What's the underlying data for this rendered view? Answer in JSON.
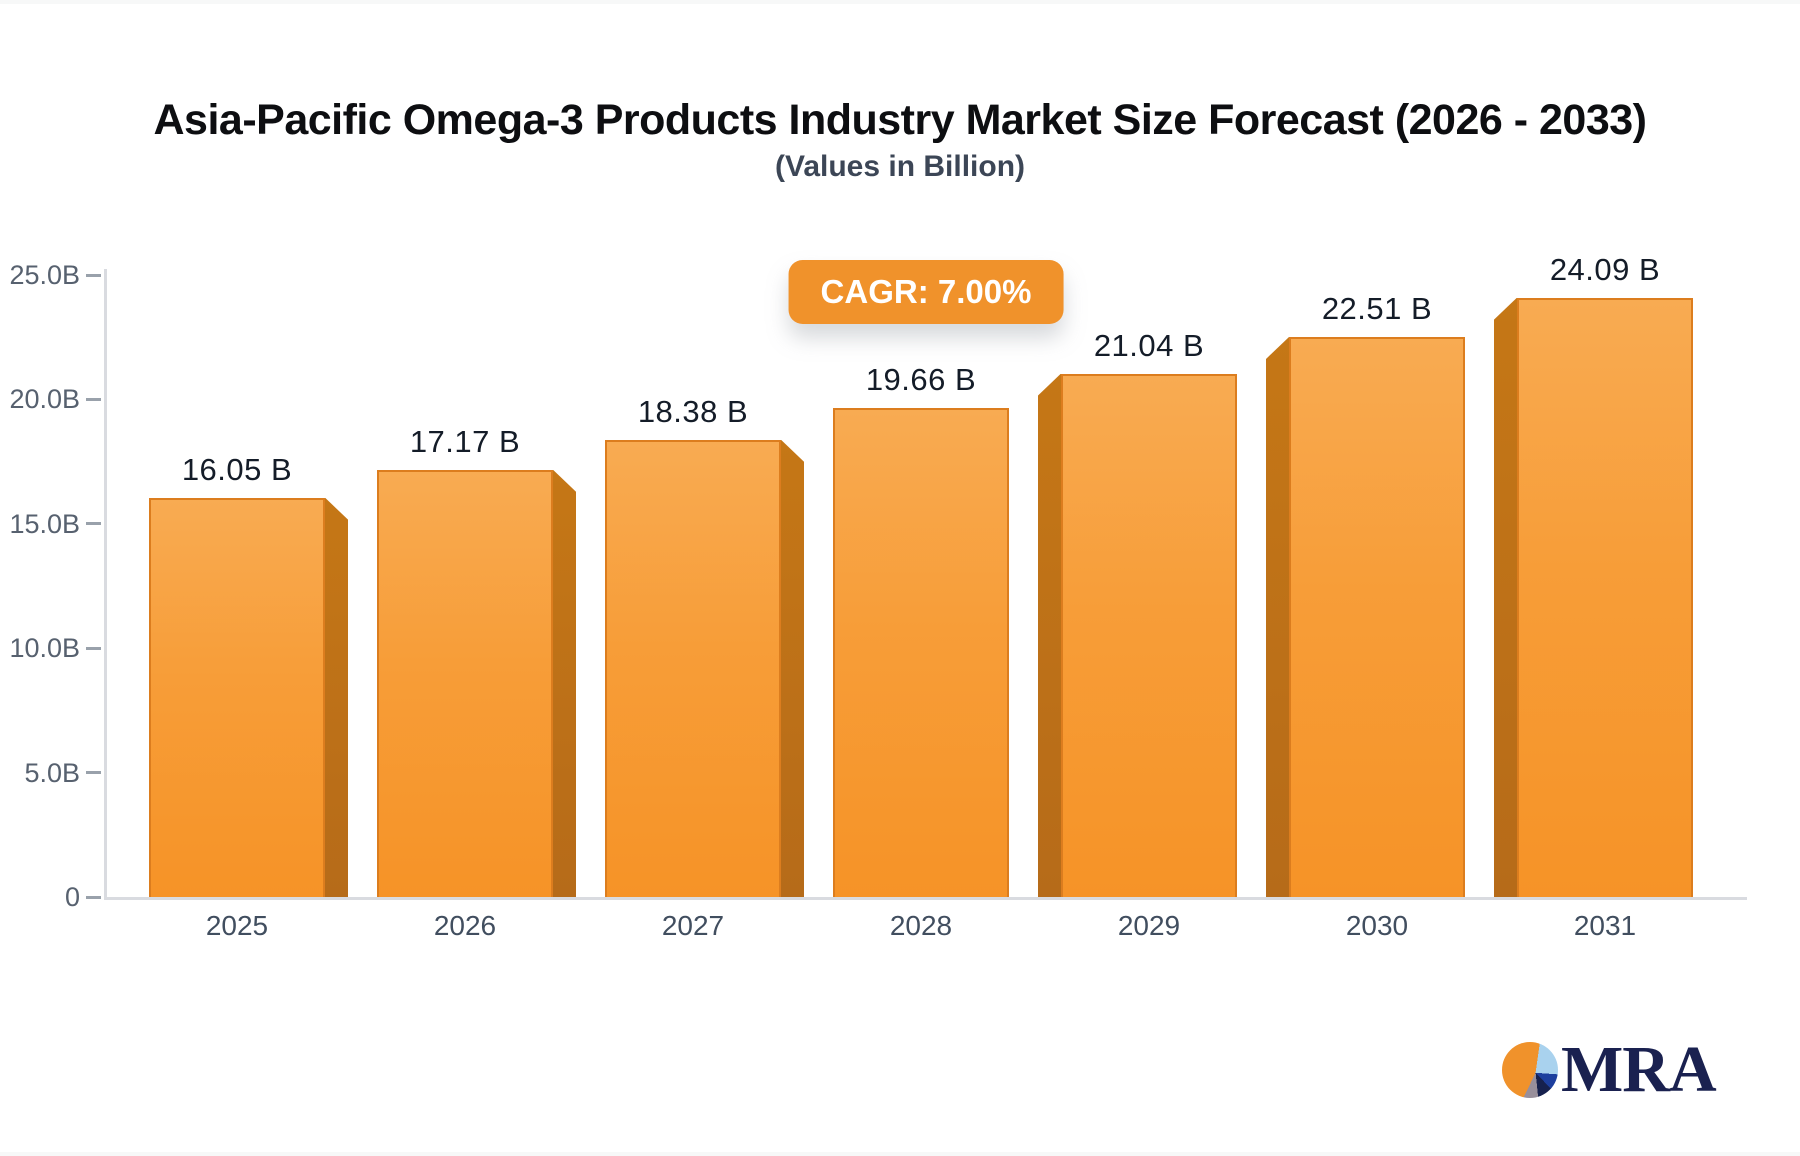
{
  "header": {
    "title": "Asia-Pacific Omega-3 Products Industry Market Size Forecast (2026 - 2033)",
    "subtitle": "(Values in Billion)"
  },
  "badge": {
    "label": "CAGR: 7.00%"
  },
  "logo": {
    "text": "MRA",
    "pie_icon": "pie-chart-icon"
  },
  "colors": {
    "bar_orange_top": "#f8ab52",
    "bar_orange_bottom": "#f69327",
    "bar_stroke": "#dc7d1e",
    "bar_side_dark": "#bc6e18",
    "badge_orange": "#f0922b",
    "axis_gray": "#d9dbe0",
    "label_dark": "#141c28",
    "logo_navy": "#1a2150"
  },
  "chart_data": {
    "type": "bar",
    "title": "Asia-Pacific Omega-3 Products Industry Market Size Forecast (2026 - 2033)",
    "subtitle": "(Values in Billion)",
    "annotation": "CAGR: 7.00%",
    "categories": [
      "2025",
      "2026",
      "2027",
      "2028",
      "2029",
      "2030",
      "2031"
    ],
    "values": [
      16.05,
      17.17,
      18.38,
      19.66,
      21.04,
      22.51,
      24.09
    ],
    "value_labels": [
      "16.05 B",
      "17.17 B",
      "18.38 B",
      "19.66 B",
      "21.04 B",
      "22.51 B",
      "24.09 B"
    ],
    "xlabel": "",
    "ylabel": "",
    "ylim": [
      0,
      25
    ],
    "y_tick_values": [
      0,
      5,
      10,
      15,
      20,
      25
    ],
    "y_tick_labels": [
      "0",
      "5.0B",
      "10.0B",
      "15.0B",
      "20.0B",
      "25.0B"
    ],
    "grid": false,
    "legend": false,
    "style": "3d-extruded-bars, center-vanishing-point"
  }
}
